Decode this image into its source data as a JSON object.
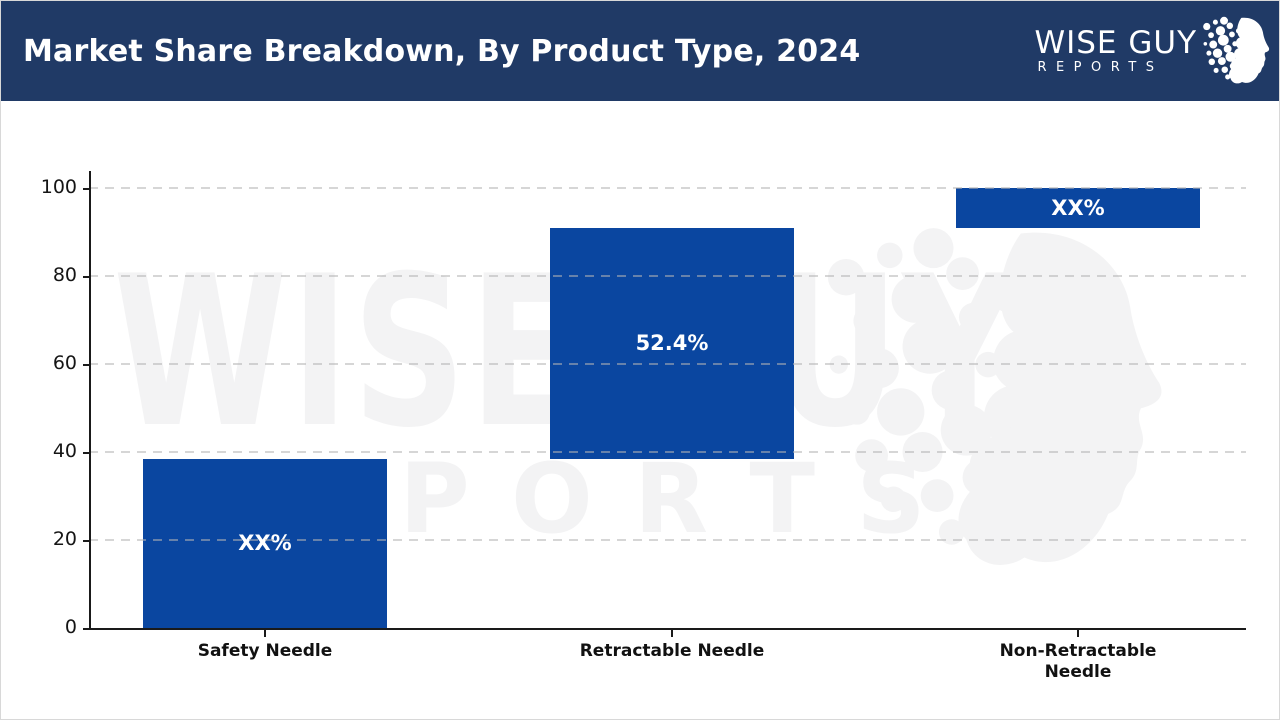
{
  "header": {
    "title": "Market Share Breakdown, By Product Type, 2024",
    "logo": {
      "line1": "WISE GUY",
      "line2": "REPORTS"
    }
  },
  "watermark": {
    "line1": "WISE GUY",
    "line2": "R E P O R T S"
  },
  "chart_data": {
    "type": "bar",
    "subtype": "waterfall-stacked",
    "title": "Market Share Breakdown, By Product Type, 2024",
    "categories": [
      "Safety Needle",
      "Retractable Needle",
      "Non-Retractable Needle"
    ],
    "bars": [
      {
        "category": "Safety Needle",
        "label": "XX%",
        "base": 0,
        "value": 38.5
      },
      {
        "category": "Retractable Needle",
        "label": "52.4%",
        "base": 38.5,
        "value": 52.4
      },
      {
        "category": "Non-Retractable Needle",
        "label": "XX%",
        "base": 90.9,
        "value": 9.1
      }
    ],
    "ylim": [
      0,
      100
    ],
    "yticks": [
      0,
      20,
      40,
      60,
      80,
      100
    ],
    "grid": "horizontal-dashed",
    "legend": "none",
    "xlabel": "",
    "ylabel": "",
    "colors": {
      "bar": "#0a46a0",
      "bar_label": "#ffffff",
      "header_bg": "#203a66",
      "axis": "#1a1a1a",
      "grid": "#d9d9d9",
      "watermark": "#f3f3f4"
    }
  }
}
